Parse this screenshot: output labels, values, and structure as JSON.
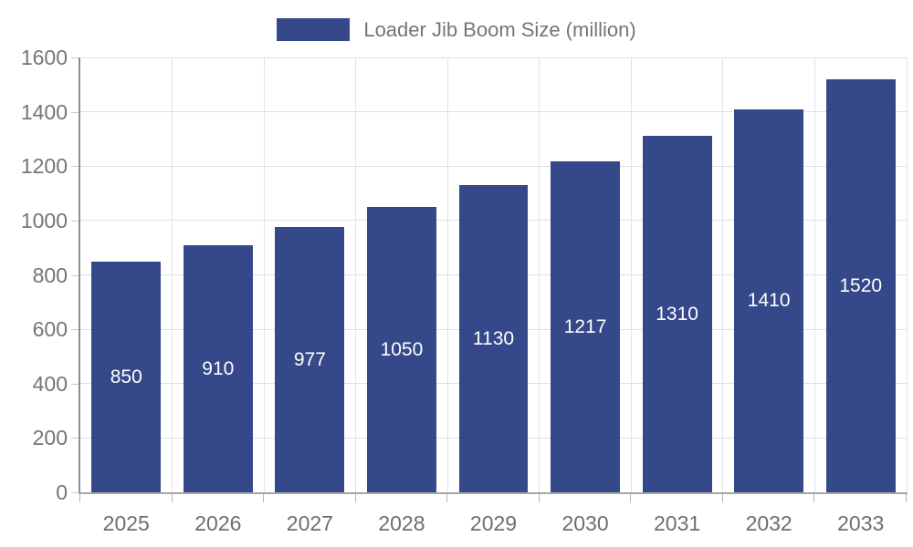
{
  "chart_data": {
    "type": "bar",
    "title": "",
    "legend": "Loader Jib Boom Size (million)",
    "legend_position": "top-center",
    "categories": [
      "2025",
      "2026",
      "2027",
      "2028",
      "2029",
      "2030",
      "2031",
      "2032",
      "2033"
    ],
    "values": [
      850,
      910,
      977,
      1050,
      1130,
      1217,
      1310,
      1410,
      1520
    ],
    "xlabel": "",
    "ylabel": "",
    "ylim": [
      0,
      1600
    ],
    "ytick_step": 200,
    "yticks": [
      0,
      200,
      400,
      600,
      800,
      1000,
      1200,
      1400,
      1600
    ],
    "grid": true,
    "bar_labels_visible": true,
    "colors": {
      "bar": "#35498a",
      "bar_label": "#ffffff",
      "legend_text": "#757575",
      "axis_text": "#757575",
      "x_axis_text": "#6e6e6e",
      "gridline_h": "#e0e0e0",
      "gridline_v": "#e2e2e8",
      "axis_line": "#8c8c8c",
      "background": "#ffffff"
    }
  }
}
